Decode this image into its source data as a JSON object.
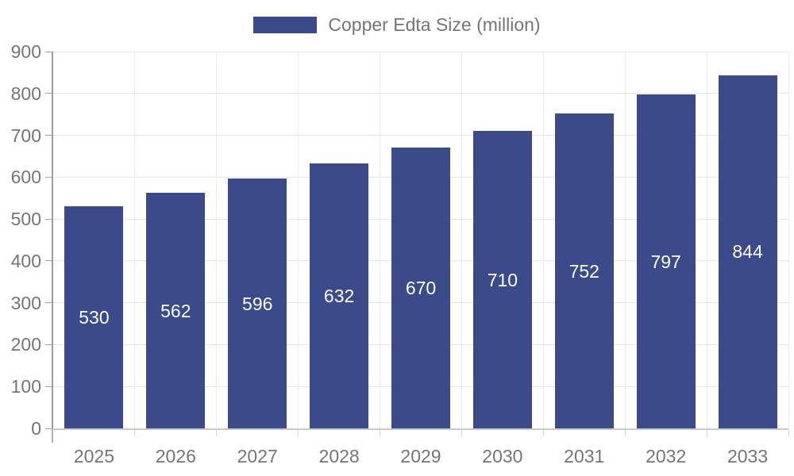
{
  "page": {
    "background": "#ffffff"
  },
  "legend": {
    "label": "Copper Edta Size (million)",
    "position": "top-center"
  },
  "chart_data": {
    "type": "bar",
    "title": "Copper Edta Size (million)",
    "categories": [
      "2025",
      "2026",
      "2027",
      "2028",
      "2029",
      "2030",
      "2031",
      "2032",
      "2033"
    ],
    "values": [
      530,
      562,
      596,
      632,
      670,
      710,
      752,
      797,
      844
    ],
    "xlabel": "",
    "ylabel": "",
    "ylim": [
      0,
      900
    ],
    "y_ticks": [
      0,
      100,
      200,
      300,
      400,
      500,
      600,
      700,
      800,
      900
    ],
    "grid": true,
    "legend_position": "top",
    "value_labels_shown": true,
    "value_label_position": "inside-center",
    "colors": {
      "bar": "#3a4a8b",
      "value_label": "#ffffff",
      "axis_text": "#757575",
      "h_gridline": "#e5e5e5",
      "v_gridline": "#ebebeb"
    }
  }
}
